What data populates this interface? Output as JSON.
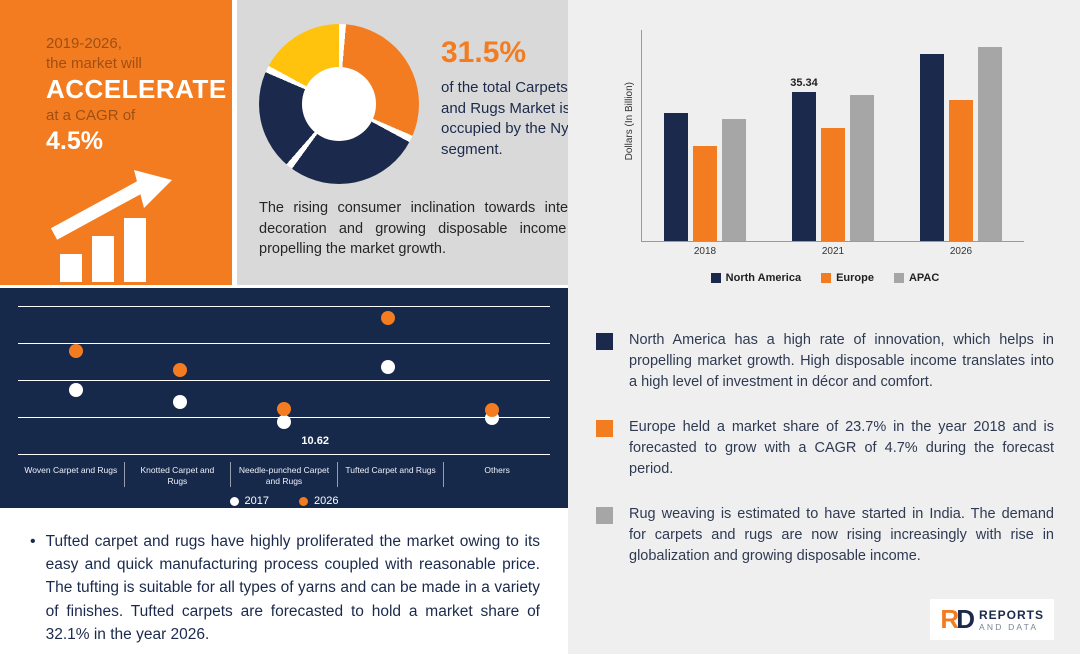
{
  "accelerate_card": {
    "intro_line1": "2019-2026,",
    "intro_line2": "the market will",
    "headline": "ACCELERATE",
    "sub_line": "at a CAGR of",
    "rate": "4.5%"
  },
  "donut_card": {
    "stat_value": "31.5%",
    "stat_caption": "of the total Carpets and Rugs Market is occupied by the Nylon segment.",
    "note": "The rising consumer inclination towards interior decoration and growing disposable income is propelling the market growth."
  },
  "left_insight": "Tufted carpet and rugs have highly proliferated the market owing to its easy and quick manufacturing process coupled with reasonable price. The tufting is suitable for all types of yarns and can be made in a variety of finishes. Tufted carpets are forecasted to hold a market share of 32.1% in the year 2026.",
  "right_insights": [
    {
      "color": "#1b2a4c",
      "text": "North America has a high rate of innovation, which helps in propelling market growth. High disposable income translates into a high level of investment in décor and comfort."
    },
    {
      "color": "#f47c20",
      "text": "Europe held a market share of 23.7% in the year 2018 and is forecasted to grow with a CAGR of 4.7% during the forecast period."
    },
    {
      "color": "#a6a6a6",
      "text": "Rug weaving is estimated to have started in India. The demand for carpets and rugs are now rising increasingly with rise in globalization and growing disposable income."
    }
  ],
  "logo": {
    "mark_r": "R",
    "mark_d": "D",
    "name_line1": "REPORTS",
    "name_line2": "AND DATA"
  },
  "chart_data": [
    {
      "type": "pie",
      "variant": "donut",
      "slices": [
        {
          "label": "Nylon",
          "value": 31.5,
          "color": "#f47c20"
        },
        {
          "label": "",
          "value": 28.5,
          "color": "#1b2a4c"
        },
        {
          "label": "",
          "value": 21.5,
          "color": "#1b2a4c"
        },
        {
          "label": "",
          "value": 18.5,
          "color": "#ffc20d"
        }
      ]
    },
    {
      "type": "scatter",
      "categories": [
        "Woven Carpet and Rugs",
        "Knotted Carpet and Rugs",
        "Needle-punched Carpet and Rugs",
        "Tufted Carpet and Rugs",
        "Others"
      ],
      "series": [
        {
          "name": "2017",
          "color": "#ffffff",
          "values": [
            15.2,
            12.2,
            7.5,
            20.6,
            8.4
          ]
        },
        {
          "name": "2026",
          "color": "#f47c20",
          "values": [
            24.4,
            19.8,
            10.62,
            32.1,
            10.5
          ]
        }
      ],
      "ylim": [
        0,
        35
      ],
      "grid": true,
      "legend_position": "bottom",
      "annotations": [
        {
          "text": "10.62",
          "category_index": 2
        }
      ]
    },
    {
      "type": "bar",
      "categories": [
        "2018",
        "2021",
        "2026"
      ],
      "series": [
        {
          "name": "North America",
          "color": "#1b2a4c",
          "values": [
            30.4,
            35.34,
            44.4
          ]
        },
        {
          "name": "Europe",
          "color": "#f47c20",
          "values": [
            22.6,
            26.7,
            33.5
          ]
        },
        {
          "name": "APAC",
          "color": "#a6a6a6",
          "values": [
            28.8,
            34.5,
            46.0
          ]
        }
      ],
      "ylabel": "Dollars (In Billion)",
      "ylim": [
        0,
        50
      ],
      "legend_position": "bottom",
      "value_labels": [
        {
          "series_index": 0,
          "category_index": 1,
          "text": "35.34"
        }
      ]
    }
  ]
}
